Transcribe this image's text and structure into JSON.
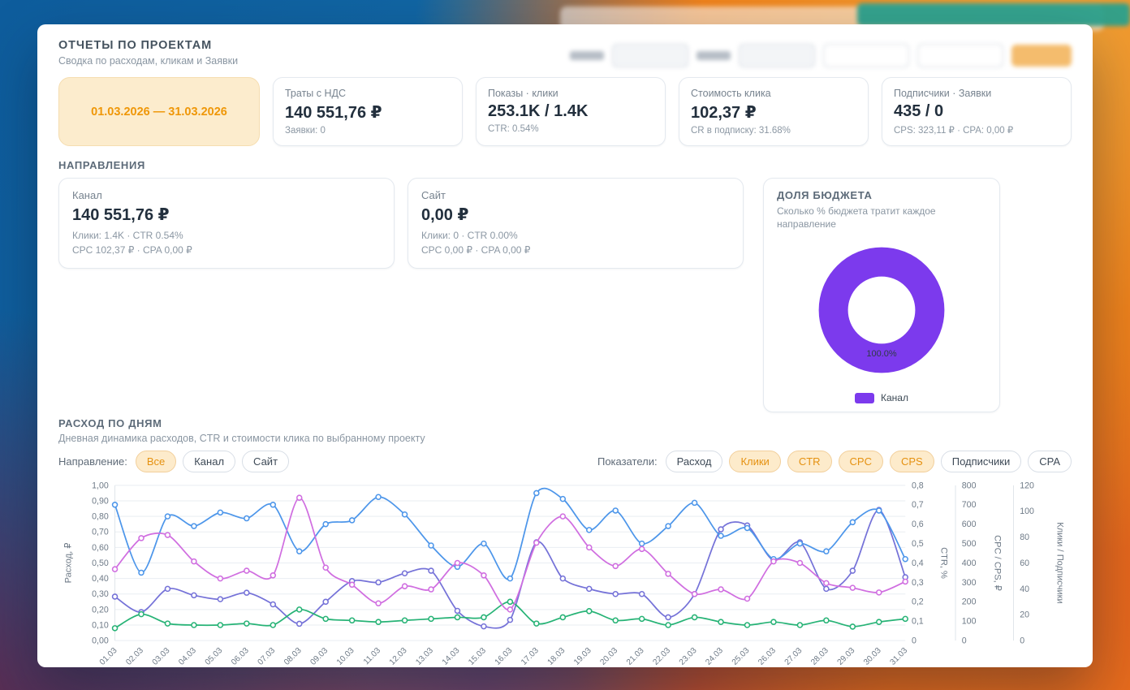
{
  "header": {
    "title": "ОТЧЕТЫ ПО ПРОЕКТАМ",
    "subtitle": "Сводка по расходам, кликам и Заявки"
  },
  "summary": {
    "date_range": "01.03.2026 — 31.03.2026",
    "cards": [
      {
        "title": "Траты с НДС",
        "value": "140 551,76 ₽",
        "sub": "Заявки: 0"
      },
      {
        "title": "Показы · клики",
        "value": "253.1K / 1.4K",
        "sub": "CTR: 0.54%"
      },
      {
        "title": "Стоимость клика",
        "value": "102,37 ₽",
        "sub": "CR в подписку: 31.68%"
      },
      {
        "title": "Подписчики · Заявки",
        "value": "435 / 0",
        "sub": "CPS: 323,11 ₽ · CPA: 0,00 ₽"
      }
    ]
  },
  "directions": {
    "section_title": "НАПРАВЛЕНИЯ",
    "cards": [
      {
        "title": "Канал",
        "value": "140 551,76 ₽",
        "line1": "Клики: 1.4K · CTR 0.54%",
        "line2": "CPC 102,37 ₽ · CPA 0,00 ₽"
      },
      {
        "title": "Сайт",
        "value": "0,00 ₽",
        "line1": "Клики: 0 · CTR 0.00%",
        "line2": "CPC 0,00 ₽ · CPA 0,00 ₽"
      }
    ],
    "budget": {
      "title": "ДОЛЯ БЮДЖЕТА",
      "subtitle": "Сколько % бюджета тратит каждое направление",
      "donut": {
        "label": "100.0%",
        "legend": "Канал",
        "color": "#7c3aed",
        "value": 100
      }
    }
  },
  "daily": {
    "title": "РАСХОД ПО ДНЯМ",
    "subtitle": "Дневная динамика расходов, CTR и стоимости клика по выбранному проекту",
    "direction_filter": {
      "label": "Направление:",
      "chips": [
        {
          "label": "Все",
          "active": true
        },
        {
          "label": "Канал",
          "active": false
        },
        {
          "label": "Сайт",
          "active": false
        }
      ]
    },
    "metric_filter": {
      "label": "Показатели:",
      "chips": [
        {
          "label": "Расход",
          "active": false
        },
        {
          "label": "Клики",
          "active": true
        },
        {
          "label": "CTR",
          "active": true
        },
        {
          "label": "CPC",
          "active": true
        },
        {
          "label": "CPS",
          "active": true
        },
        {
          "label": "Подписчики",
          "active": false
        },
        {
          "label": "CPA",
          "active": false
        }
      ]
    }
  },
  "chart_data": {
    "type": "line",
    "x": [
      "01.03",
      "02.03",
      "03.03",
      "04.03",
      "05.03",
      "06.03",
      "07.03",
      "08.03",
      "09.03",
      "10.03",
      "11.03",
      "12.03",
      "13.03",
      "14.03",
      "15.03",
      "16.03",
      "17.03",
      "18.03",
      "19.03",
      "20.03",
      "21.03",
      "22.03",
      "23.03",
      "24.03",
      "25.03",
      "26.03",
      "27.03",
      "28.03",
      "29.03",
      "30.03",
      "31.03"
    ],
    "axes": {
      "left": {
        "title": "Расход, ₽",
        "min": 0,
        "max": 1,
        "step": 0.1,
        "format": "comma2"
      },
      "right1": {
        "title": "CTR, %",
        "min": 0,
        "max": 0.8,
        "step": 0.1,
        "format": "comma1"
      },
      "right2": {
        "title": "CPC / CPS, ₽",
        "min": 0,
        "max": 800,
        "step": 100,
        "format": "int"
      },
      "right3": {
        "title": "Клики / Подписчики",
        "min": 0,
        "max": 120,
        "step": 20,
        "format": "int"
      }
    },
    "grid": true,
    "legend_position": "bottom",
    "series": [
      {
        "name": "Клики",
        "axis": "right3",
        "color": "#7572d8",
        "fill": "#d9d7f6",
        "values": [
          34,
          22,
          40,
          35,
          32,
          37,
          28,
          13,
          30,
          46,
          45,
          52,
          54,
          23,
          11,
          16,
          76,
          48,
          40,
          36,
          36,
          18,
          36,
          86,
          89,
          62,
          76,
          40,
          54,
          101,
          49
        ]
      },
      {
        "name": "CTR, %",
        "axis": "right1",
        "color": "#4d96ea",
        "fill": "#d2e5fb",
        "values": [
          0.7,
          0.35,
          0.64,
          0.59,
          0.66,
          0.63,
          0.7,
          0.46,
          0.6,
          0.62,
          0.74,
          0.65,
          0.49,
          0.38,
          0.5,
          0.32,
          0.76,
          0.73,
          0.57,
          0.67,
          0.5,
          0.59,
          0.71,
          0.54,
          0.58,
          0.42,
          0.5,
          0.46,
          0.61,
          0.67,
          0.42
        ]
      },
      {
        "name": "CPC, ₽",
        "axis": "right2",
        "color": "#27b376",
        "fill": "#ccf0df",
        "values": [
          64,
          136,
          88,
          80,
          80,
          88,
          80,
          160,
          112,
          104,
          96,
          104,
          112,
          120,
          120,
          200,
          88,
          120,
          152,
          104,
          112,
          80,
          120,
          96,
          80,
          96,
          80,
          104,
          72,
          96,
          112
        ]
      },
      {
        "name": "CPS, ₽",
        "axis": "right2",
        "color": "#d06ee0",
        "fill": "#f5dcf9",
        "values": [
          368,
          528,
          544,
          408,
          320,
          360,
          336,
          736,
          376,
          288,
          192,
          280,
          264,
          400,
          336,
          160,
          504,
          640,
          480,
          384,
          472,
          344,
          240,
          264,
          216,
          408,
          400,
          296,
          272,
          248,
          304
        ]
      }
    ]
  }
}
